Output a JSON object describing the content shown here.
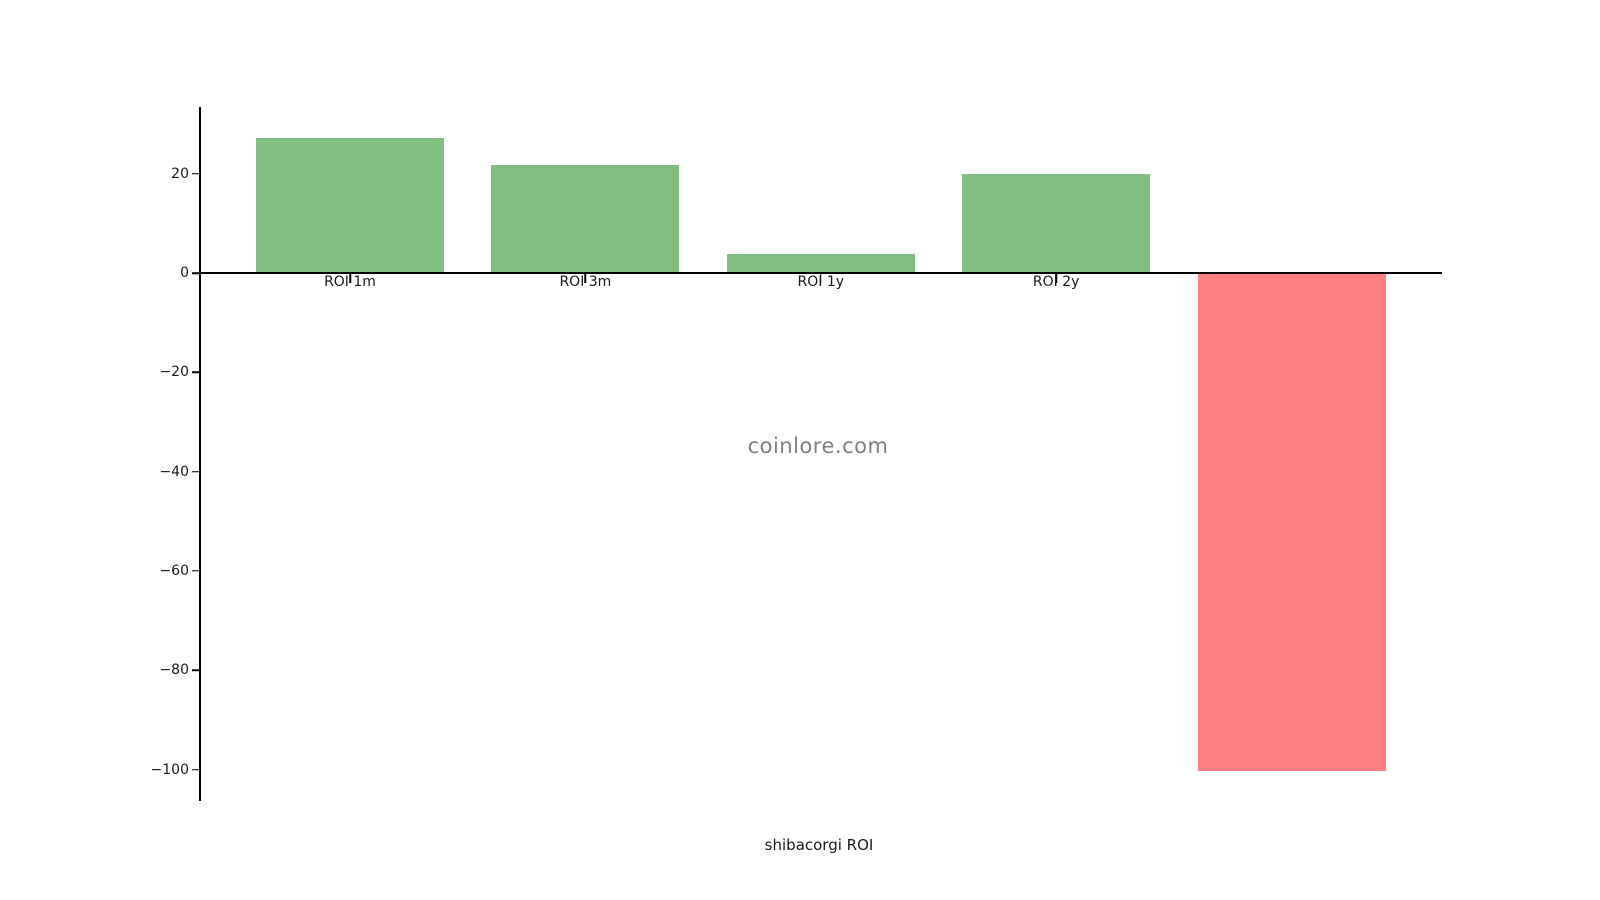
{
  "chart_data": {
    "type": "bar",
    "title": "",
    "categories": [
      "ROI 1m",
      "ROI 3m",
      "ROI 1y",
      "ROI 2y",
      ""
    ],
    "values": [
      27.2,
      21.8,
      3.8,
      20,
      -100
    ],
    "positive_color": "#80bf80",
    "negative_color": "#ff8080",
    "xlabel": "shibacorgi ROI",
    "ylabel": "",
    "yticks": [
      20,
      0,
      -20,
      -40,
      -60,
      -80,
      -100
    ],
    "ytick_labels": [
      "20",
      "0",
      "−20",
      "−40",
      "−60",
      "−80",
      "−100"
    ],
    "ylim": [
      -106,
      33
    ],
    "grid": false,
    "legend": null,
    "watermark": "coinlore.com",
    "watermark_color": "#7f7f7f",
    "axis_color": "#000000",
    "text_color": "#1a1a1a"
  }
}
